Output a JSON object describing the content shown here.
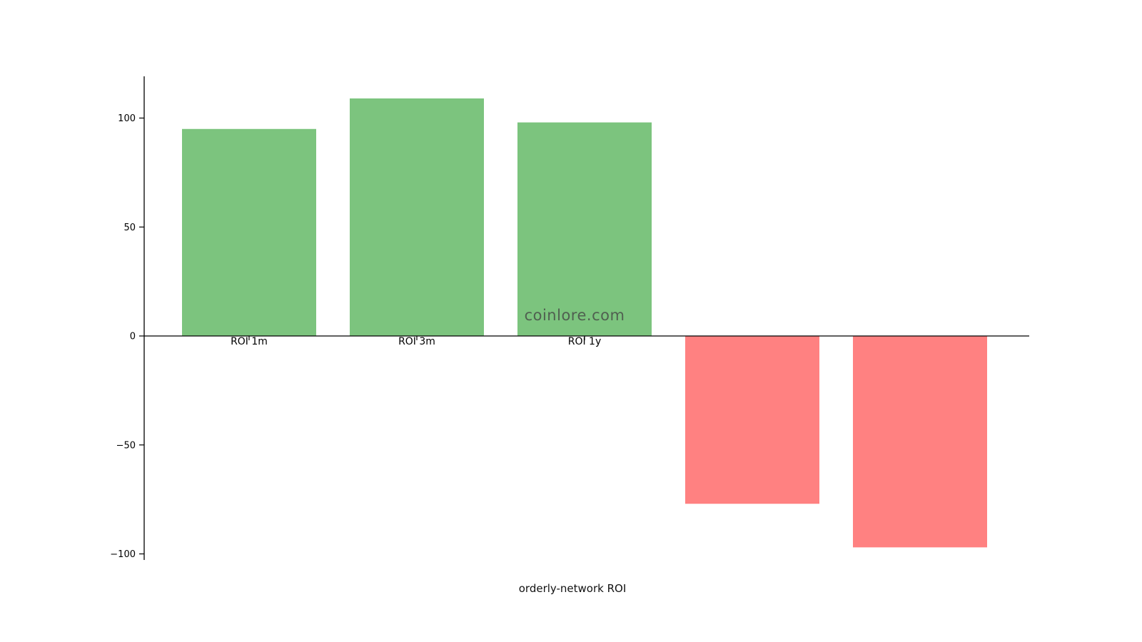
{
  "watermark": "coinlore.com",
  "footer_title": "orderly-network ROI",
  "colors": {
    "positive_bar": "#7cc47e",
    "negative_bar": "#ff8181",
    "axis": "#000000",
    "watermark_text": "#444444"
  },
  "chart_data": {
    "type": "bar",
    "title": "orderly-network ROI",
    "watermark": "coinlore.com",
    "categories": [
      "ROI 1m",
      "ROI 3m",
      "ROI 1y",
      "",
      ""
    ],
    "values": [
      95,
      109,
      98,
      -77,
      -97
    ],
    "series": [
      {
        "name": "orderly-network ROI %",
        "values": [
          95,
          109,
          98,
          -77,
          -97
        ]
      }
    ],
    "xlabel": "",
    "ylabel": "",
    "yticks": [
      100,
      50,
      0,
      -50,
      -100
    ],
    "ylim": [
      -103,
      119
    ],
    "grid": false,
    "legend_position": "none",
    "bar_color_rule": "green when value >= 0, red when value < 0",
    "notes": "x tick labels visible only for the three positive bars; negative bars unlabeled; zero baseline drawn as full-width horizontal axis line"
  }
}
